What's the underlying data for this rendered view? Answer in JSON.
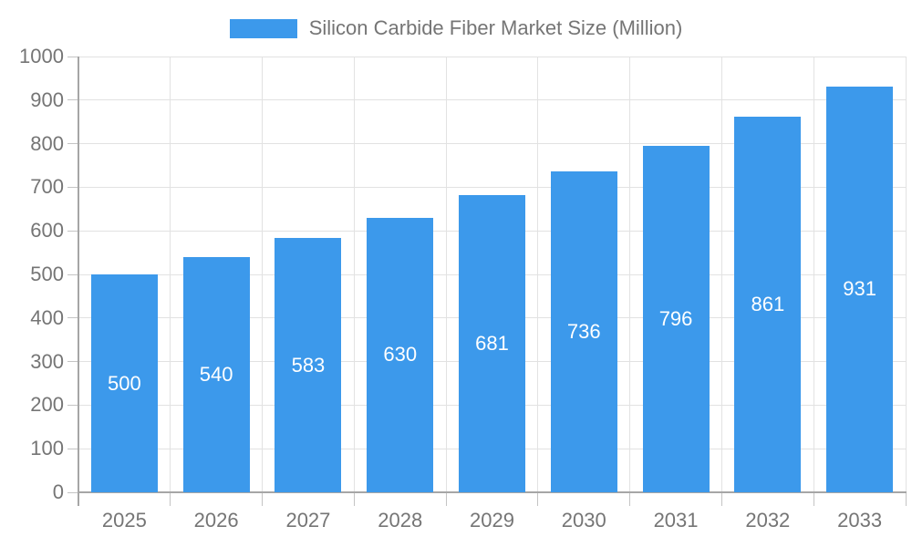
{
  "chart_data": {
    "type": "bar",
    "title": "",
    "legend": {
      "position": "top",
      "label": "Silicon Carbide Fiber Market Size (Million)"
    },
    "categories": [
      "2025",
      "2026",
      "2027",
      "2028",
      "2029",
      "2030",
      "2031",
      "2032",
      "2033"
    ],
    "series": [
      {
        "name": "Silicon Carbide Fiber Market Size (Million)",
        "values": [
          500,
          540,
          583,
          630,
          681,
          736,
          796,
          861,
          931
        ]
      }
    ],
    "value_labels": {
      "visible": true,
      "placement": "inside-center",
      "color": "#ffffff"
    },
    "xlabel": "",
    "ylabel": "",
    "ylim": [
      0,
      1000
    ],
    "ytick_step": 100,
    "ytick_labels": [
      "0",
      "100",
      "200",
      "300",
      "400",
      "500",
      "600",
      "700",
      "800",
      "900",
      "1000"
    ],
    "grid": true,
    "colors": {
      "bar": "#3c99eb",
      "axis_line": "#a6a6a6",
      "grid_line": "#e2e2e2",
      "tick_mark": "#c4c4c4",
      "tick_label": "#757575",
      "background": "#ffffff"
    }
  }
}
